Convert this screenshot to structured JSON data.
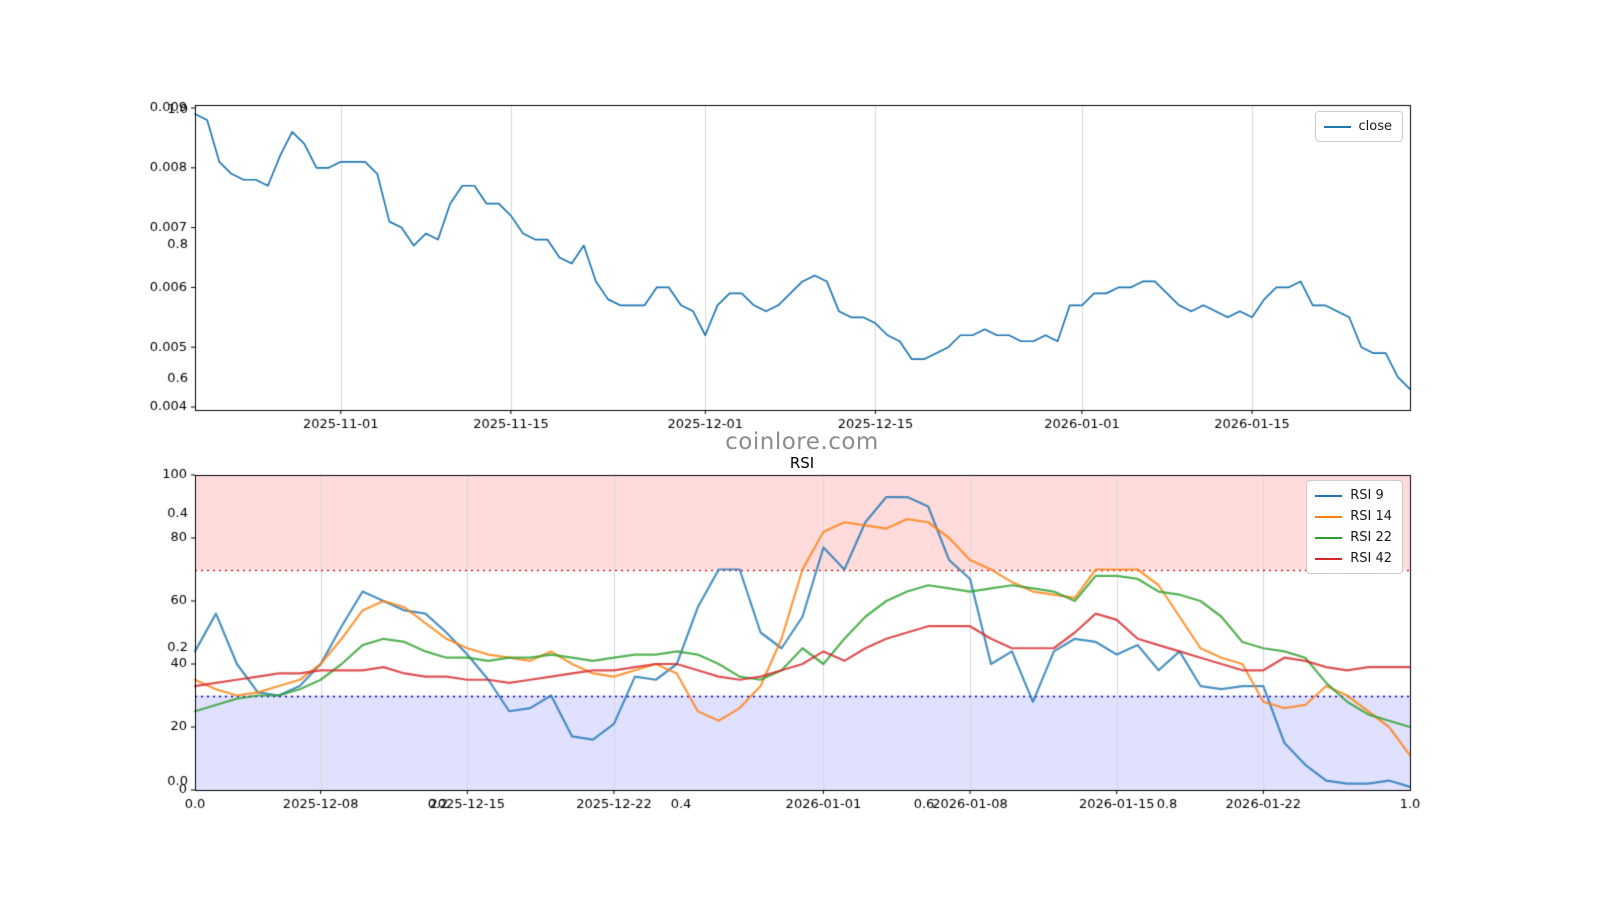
{
  "watermark": "coinlore.com",
  "rsi_title": "RSI",
  "stray_ticks": {
    "left": [
      "1.0",
      "0.8",
      "0.6",
      "0.4",
      "0.2",
      "0.0"
    ],
    "bottom": [
      "0.0",
      "0.2",
      "0.4",
      "0.6",
      "0.8",
      "1.0"
    ]
  },
  "chart_data": [
    {
      "type": "line",
      "name": "price-close",
      "title": "",
      "legend_position": "upper-right",
      "grid": "vertical",
      "ylim": [
        0.00395,
        0.00905
      ],
      "yticks": [
        {
          "v": 0.004,
          "label": "0.004"
        },
        {
          "v": 0.005,
          "label": "0.005"
        },
        {
          "v": 0.006,
          "label": "0.006"
        },
        {
          "v": 0.007,
          "label": "0.007"
        },
        {
          "v": 0.008,
          "label": "0.008"
        },
        {
          "v": 0.009,
          "label": "0.009"
        }
      ],
      "xticks": [
        {
          "t": 0.12,
          "label": "2025-11-01"
        },
        {
          "t": 0.26,
          "label": "2025-11-15"
        },
        {
          "t": 0.42,
          "label": "2025-12-01"
        },
        {
          "t": 0.56,
          "label": "2025-12-15"
        },
        {
          "t": 0.73,
          "label": "2026-01-01"
        },
        {
          "t": 0.87,
          "label": "2026-01-15"
        }
      ],
      "series": [
        {
          "name": "close",
          "color": "#1f77b4",
          "values": [
            0.0089,
            0.0088,
            0.0081,
            0.0079,
            0.0078,
            0.0078,
            0.0077,
            0.0082,
            0.0086,
            0.0084,
            0.008,
            0.008,
            0.0081,
            0.0081,
            0.0081,
            0.0079,
            0.0071,
            0.007,
            0.0067,
            0.0069,
            0.0068,
            0.0074,
            0.0077,
            0.0077,
            0.0074,
            0.0074,
            0.0072,
            0.0069,
            0.0068,
            0.0068,
            0.0065,
            0.0064,
            0.0067,
            0.0061,
            0.0058,
            0.0057,
            0.0057,
            0.0057,
            0.006,
            0.006,
            0.0057,
            0.0056,
            0.0052,
            0.0057,
            0.0059,
            0.0059,
            0.0057,
            0.0056,
            0.0057,
            0.0059,
            0.0061,
            0.0062,
            0.0061,
            0.0056,
            0.0055,
            0.0055,
            0.0054,
            0.0052,
            0.0051,
            0.0048,
            0.0048,
            0.0049,
            0.005,
            0.0052,
            0.0052,
            0.0053,
            0.0052,
            0.0052,
            0.0051,
            0.0051,
            0.0052,
            0.0051,
            0.0057,
            0.0057,
            0.0059,
            0.0059,
            0.006,
            0.006,
            0.0061,
            0.0061,
            0.0059,
            0.0057,
            0.0056,
            0.0057,
            0.0056,
            0.0055,
            0.0056,
            0.0055,
            0.0058,
            0.006,
            0.006,
            0.0061,
            0.0057,
            0.0057,
            0.0056,
            0.0055,
            0.005,
            0.0049,
            0.0049,
            0.0045,
            0.0043
          ]
        }
      ]
    },
    {
      "type": "line",
      "name": "rsi",
      "title": "RSI",
      "legend_position": "upper-right",
      "grid": "vertical",
      "ylim": [
        0,
        100
      ],
      "yticks": [
        {
          "v": 0,
          "label": "0"
        },
        {
          "v": 20,
          "label": "20"
        },
        {
          "v": 40,
          "label": "40"
        },
        {
          "v": 60,
          "label": "60"
        },
        {
          "v": 80,
          "label": "80"
        },
        {
          "v": 100,
          "label": "100"
        }
      ],
      "xticks": [
        {
          "t": 0.1034,
          "label": "2025-12-08"
        },
        {
          "t": 0.2241,
          "label": "2025-12-15"
        },
        {
          "t": 0.3448,
          "label": "2025-12-22"
        },
        {
          "t": 0.5172,
          "label": "2026-01-01"
        },
        {
          "t": 0.6379,
          "label": "2026-01-08"
        },
        {
          "t": 0.7586,
          "label": "2026-01-15"
        },
        {
          "t": 0.8793,
          "label": "2026-01-22"
        }
      ],
      "bands": [
        {
          "from": 70,
          "to": 100,
          "color": "rgba(255,0,0,0.14)"
        },
        {
          "from": 0,
          "to": 30,
          "color": "rgba(0,0,255,0.12)"
        }
      ],
      "hlines": [
        {
          "y": 70,
          "color": "#ff0000"
        },
        {
          "y": 30,
          "color": "#0000cc"
        }
      ],
      "series": [
        {
          "name": "RSI 9",
          "color": "#1f77b4",
          "values": [
            44,
            56,
            40,
            31,
            30,
            33,
            40,
            52,
            63,
            60,
            57,
            56,
            50,
            43,
            35,
            25,
            26,
            30,
            17,
            16,
            21,
            36,
            35,
            40,
            58,
            70,
            70,
            50,
            45,
            55,
            77,
            70,
            85,
            93,
            93,
            90,
            73,
            67,
            40,
            44,
            28,
            44,
            48,
            47,
            43,
            46,
            38,
            44,
            33,
            32,
            33,
            33,
            15,
            8,
            3,
            2,
            2,
            3,
            1
          ]
        },
        {
          "name": "RSI 14",
          "color": "#ff7f0e",
          "values": [
            35,
            32,
            30,
            31,
            33,
            35,
            40,
            48,
            57,
            60,
            58,
            53,
            48,
            45,
            43,
            42,
            41,
            44,
            40,
            37,
            36,
            38,
            40,
            37,
            25,
            22,
            26,
            33,
            48,
            70,
            82,
            85,
            84,
            83,
            86,
            85,
            80,
            73,
            70,
            66,
            63,
            62,
            61,
            70,
            70,
            70,
            65,
            55,
            45,
            42,
            40,
            28,
            26,
            27,
            33,
            30,
            25,
            20,
            11
          ]
        },
        {
          "name": "RSI 22",
          "color": "#2ca02c",
          "values": [
            25,
            27,
            29,
            30,
            30,
            32,
            35,
            40,
            46,
            48,
            47,
            44,
            42,
            42,
            41,
            42,
            42,
            43,
            42,
            41,
            42,
            43,
            43,
            44,
            43,
            40,
            36,
            35,
            38,
            45,
            40,
            48,
            55,
            60,
            63,
            65,
            64,
            63,
            64,
            65,
            64,
            63,
            60,
            68,
            68,
            67,
            63,
            62,
            60,
            55,
            47,
            45,
            44,
            42,
            34,
            28,
            24,
            22,
            20
          ]
        },
        {
          "name": "RSI 42",
          "color": "#d62728",
          "values": [
            33,
            34,
            35,
            36,
            37,
            37,
            38,
            38,
            38,
            39,
            37,
            36,
            36,
            35,
            35,
            34,
            35,
            36,
            37,
            38,
            38,
            39,
            40,
            40,
            38,
            36,
            35,
            36,
            38,
            40,
            44,
            41,
            45,
            48,
            50,
            52,
            52,
            52,
            48,
            45,
            45,
            45,
            50,
            56,
            54,
            48,
            46,
            44,
            42,
            40,
            38,
            38,
            42,
            41,
            39,
            38,
            39,
            39,
            39
          ]
        }
      ]
    }
  ]
}
